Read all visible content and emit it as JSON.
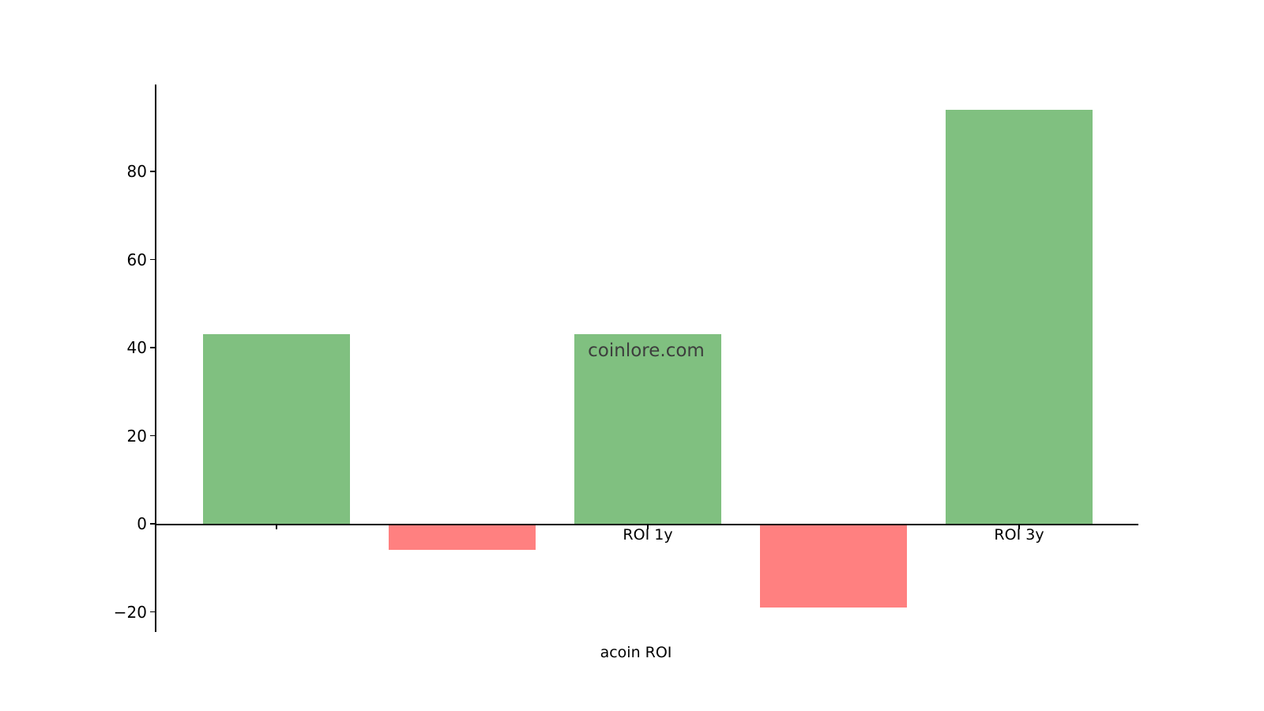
{
  "figure": {
    "watermark": "coinlore.com",
    "background": "#ffffff"
  },
  "chart_data": {
    "type": "bar",
    "title": "",
    "xlabel": "acoin ROI",
    "ylabel": "",
    "categories": [
      "",
      "",
      "ROI 1y",
      "",
      "ROI 3y"
    ],
    "values": [
      43,
      -6,
      43,
      -19,
      94
    ],
    "bar_colors": [
      "#80c080",
      "#ff8080",
      "#80c080",
      "#ff8080",
      "#80c080"
    ],
    "xticks": [
      {
        "bar_index": 0,
        "label": ""
      },
      {
        "bar_index": 2,
        "label": "ROI 1y"
      },
      {
        "bar_index": 4,
        "label": "ROI 3y"
      }
    ],
    "yticks": [
      {
        "value": 80,
        "label": "80"
      },
      {
        "value": 60,
        "label": "60"
      },
      {
        "value": 40,
        "label": "40"
      },
      {
        "value": 20,
        "label": "20"
      },
      {
        "value": 0,
        "label": "0"
      },
      {
        "value": -20,
        "label": "−20"
      }
    ],
    "ylim": [
      -24.6,
      99.7
    ],
    "grid": false,
    "legend": "none",
    "colors": {
      "positive": "#80c080",
      "negative": "#ff8080",
      "axis": "#000000",
      "tick_text": "#000000",
      "watermark": "#3d3d3d"
    }
  }
}
